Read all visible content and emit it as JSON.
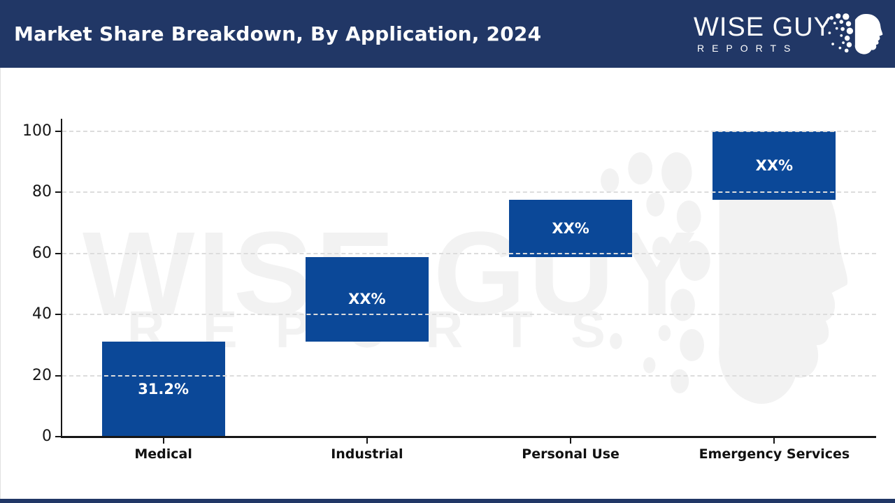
{
  "header": {
    "title": "Market Share Breakdown, By Application, 2024",
    "logo": {
      "line1": "WISE GUY",
      "line2": "REPORTS"
    }
  },
  "watermark": {
    "line1": "WISE GUY",
    "line2": "R E P O R T S"
  },
  "chart_data": {
    "type": "bar",
    "variant": "waterfall",
    "title": "Market Share Breakdown, By Application, 2024",
    "categories": [
      "Medical",
      "Industrial",
      "Personal Use",
      "Emergency Services"
    ],
    "bars": [
      {
        "category": "Medical",
        "label": "31.2%",
        "start": 0,
        "end": 31.2
      },
      {
        "category": "Industrial",
        "label": "XX%",
        "start": 31.2,
        "end": 58.8
      },
      {
        "category": "Personal Use",
        "label": "XX%",
        "start": 58.8,
        "end": 77.5
      },
      {
        "category": "Emergency Services",
        "label": "XX%",
        "start": 77.5,
        "end": 100
      }
    ],
    "y_ticks": [
      0,
      20,
      40,
      60,
      80,
      100
    ],
    "ylim": [
      0,
      104
    ],
    "xlabel": "",
    "ylabel": "",
    "grid": "horizontal-dashed",
    "legend": "none",
    "colors": {
      "bar": "#0b4898",
      "header": "#213766",
      "grid": "#dcdcdc",
      "axis": "#161616",
      "bar_label": "#ffffff",
      "watermark": "#f2f2f2"
    }
  }
}
